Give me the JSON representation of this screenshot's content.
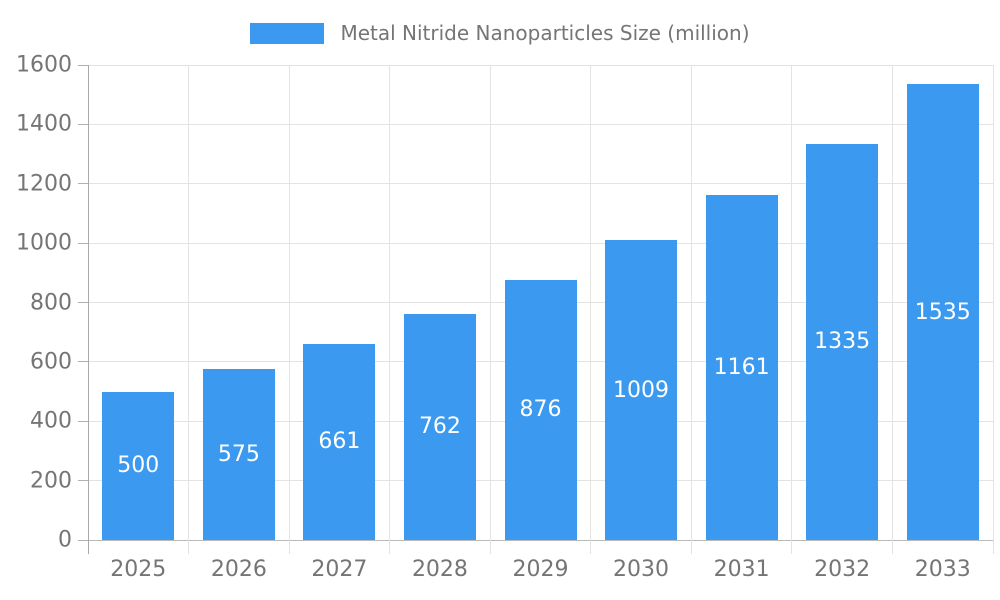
{
  "chart_data": {
    "type": "bar",
    "title": "Metal Nitride Nanoparticles Size (million)",
    "categories": [
      "2025",
      "2026",
      "2027",
      "2028",
      "2029",
      "2030",
      "2031",
      "2032",
      "2033"
    ],
    "values": [
      500,
      575,
      661,
      762,
      876,
      1009,
      1161,
      1335,
      1535
    ],
    "xlabel": "",
    "ylabel": "",
    "ylim": [
      0,
      1600
    ],
    "y_ticks": [
      0,
      200,
      400,
      600,
      800,
      1000,
      1200,
      1400,
      1600
    ],
    "grid": true,
    "legend_position": "top-center",
    "value_label_style": "inside-center-white",
    "colors": {
      "bar": "#3B99F0",
      "axis_line": "#A8A8A8",
      "zero_line": "#B8B8B8",
      "gridline": "#E3E3E3",
      "tick": "#B0B0B0",
      "axis_text": "#757575",
      "value_text": "#FFFFFF",
      "background": "#FFFFFF"
    }
  }
}
